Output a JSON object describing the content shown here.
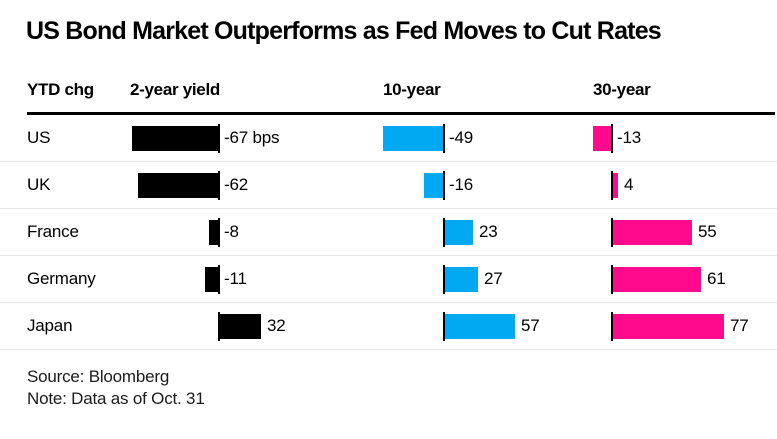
{
  "title": "US Bond Market Outperforms as Fed Moves to Cut Rates",
  "header": {
    "ytd_label": "YTD chg",
    "col1_label": "2-year yield",
    "col2_label": "10-year",
    "col3_label": "30-year"
  },
  "footer": {
    "source": "Source: Bloomberg",
    "note": "Note: Data as of Oct. 31"
  },
  "colors": {
    "two_year_bar": "#000000",
    "ten_year_bar": "#00a9f1",
    "thirty_year_bar": "#ff0a8c",
    "baseline_tick": "#000000",
    "separator": "#e7e7e7"
  },
  "chart_data": {
    "type": "bar",
    "orientation": "horizontal",
    "unit": "bps",
    "title": "US Bond Market Outperforms as Fed Moves to Cut Rates",
    "categories": [
      "US",
      "UK",
      "France",
      "Germany",
      "Japan"
    ],
    "series": [
      {
        "name": "2-year yield",
        "color": "#000000",
        "values": [
          -67,
          -62,
          -8,
          -11,
          32
        ],
        "labels": [
          "-67 bps",
          "-62",
          "-8",
          "-11",
          "32"
        ]
      },
      {
        "name": "10-year",
        "color": "#00a9f1",
        "values": [
          -49,
          -16,
          23,
          27,
          57
        ],
        "labels": [
          "-49",
          "-16",
          "23",
          "27",
          "57"
        ]
      },
      {
        "name": "30-year",
        "color": "#ff0a8c",
        "values": [
          -13,
          4,
          55,
          61,
          77
        ],
        "labels": [
          "-13",
          "4",
          "55",
          "61",
          "77"
        ]
      }
    ],
    "xlim": [
      -70,
      80
    ],
    "grid": false,
    "legend": "column headers above each bar group",
    "baseline": 0
  }
}
